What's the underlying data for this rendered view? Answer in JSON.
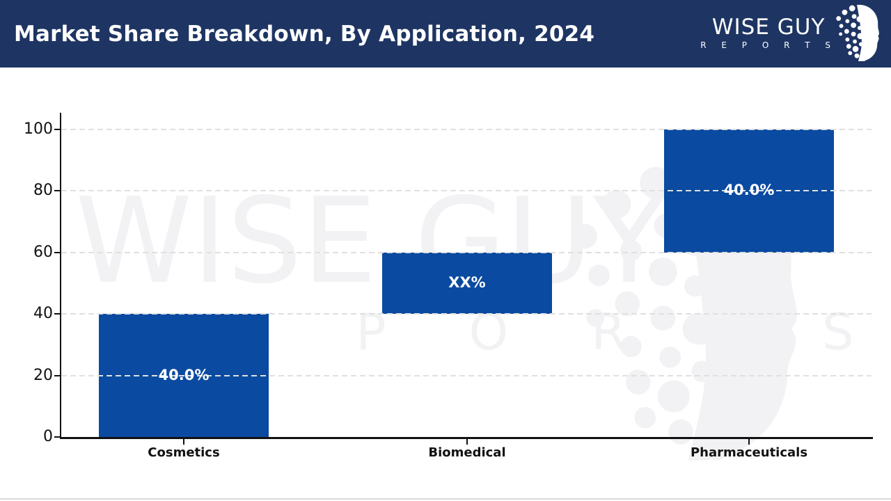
{
  "header": {
    "title": "Market Share Breakdown, By Application, 2024",
    "logo": {
      "primary": "WISE GUY",
      "secondary": "R E P O R T S"
    }
  },
  "watermark": {
    "primary": "WISE GUY",
    "secondary": "R E P O R T S"
  },
  "colors": {
    "header_bg": "#1e3563",
    "bar": "#0a4aa0",
    "grid": "#e0e0e0",
    "axis": "#111111",
    "bar_label": "#ffffff",
    "watermark": "#f2f2f4"
  },
  "chart_data": {
    "type": "bar",
    "subtype": "waterfall",
    "title": "Market Share Breakdown, By Application, 2024",
    "categories": [
      "Cosmetics",
      "Biomedical",
      "Pharmaceuticals"
    ],
    "bars": [
      {
        "category": "Cosmetics",
        "from": 0,
        "to": 40,
        "label": "40.0%"
      },
      {
        "category": "Biomedical",
        "from": 40,
        "to": 60,
        "label": "XX%"
      },
      {
        "category": "Pharmaceuticals",
        "from": 60,
        "to": 100,
        "label": "40.0%"
      }
    ],
    "ylim": [
      0,
      100
    ],
    "yticks": [
      0,
      20,
      40,
      60,
      80,
      100
    ],
    "xlabel": "",
    "ylabel": "",
    "grid": "horizontal-dashed-above-bars",
    "legend": "none"
  }
}
